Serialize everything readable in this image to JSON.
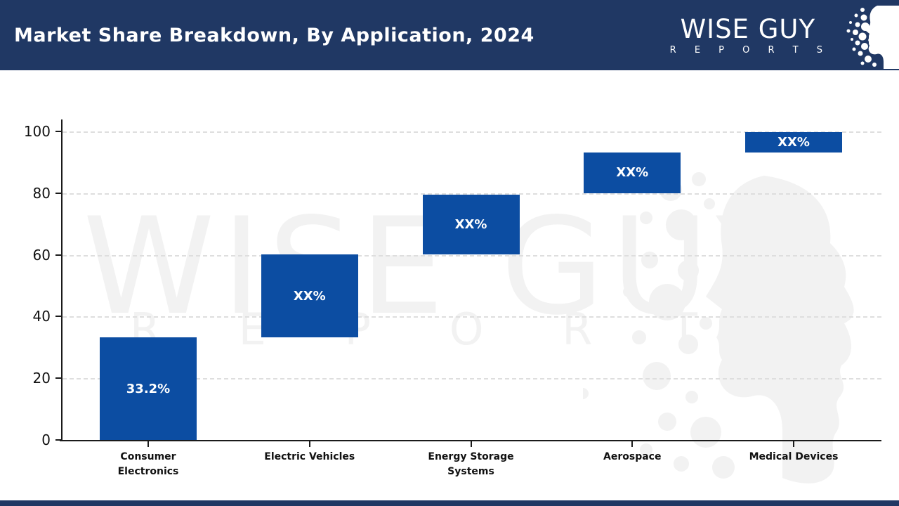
{
  "header": {
    "title": "Market Share Breakdown, By Application, 2024",
    "logo_line1": "WISE GUY",
    "logo_line2": "R E P O R T S"
  },
  "watermark": {
    "line1": "WISE GUY",
    "line2": "R E P O R T S"
  },
  "colors": {
    "header_bg": "#203864",
    "footer_bg": "#203864",
    "bar": "#0C4DA2",
    "bar_label": "#ffffff",
    "axis": "#1a1a1a",
    "gridline": "#dedede",
    "watermark": "#f2f2f2"
  },
  "chart_data": {
    "type": "bar",
    "subtype": "waterfall",
    "title": "Market Share Breakdown, By Application, 2024",
    "categories": [
      "Consumer\nElectronics",
      "Electric Vehicles",
      "Energy Storage\nSystems",
      "Aerospace",
      "Medical Devices"
    ],
    "segments": [
      {
        "category": "Consumer Electronics",
        "start": 0,
        "end": 33.2,
        "label": "33.2%"
      },
      {
        "category": "Electric Vehicles",
        "start": 33.2,
        "end": 60.1,
        "label": "XX%"
      },
      {
        "category": "Energy Storage Systems",
        "start": 60.1,
        "end": 79.6,
        "label": "XX%"
      },
      {
        "category": "Aerospace",
        "start": 80.0,
        "end": 93.2,
        "label": "XX%"
      },
      {
        "category": "Medical Devices",
        "start": 93.2,
        "end": 99.8,
        "label": "XX%"
      }
    ],
    "y_ticks": [
      0,
      20,
      40,
      60,
      80,
      100
    ],
    "ylim": [
      0,
      100
    ],
    "xlabel": "",
    "ylabel": "",
    "grid": "horizontal-dashed",
    "legend": "none"
  }
}
